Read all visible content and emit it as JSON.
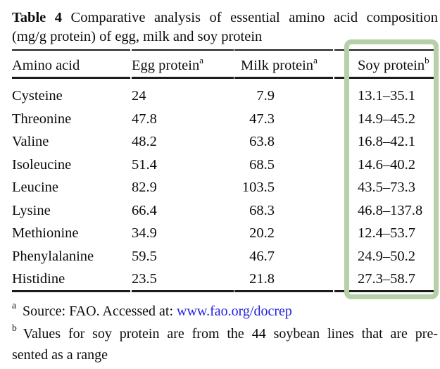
{
  "caption": {
    "tag": "Table 4",
    "line1_rest": "Comparative analysis of essential amino acid composition",
    "line2": "(mg/g protein) of egg, milk and soy protein"
  },
  "table": {
    "columns": [
      {
        "label": "Amino acid",
        "sup": ""
      },
      {
        "label": "Egg protein",
        "sup": "a"
      },
      {
        "label": "Milk protein",
        "sup": "a"
      },
      {
        "label": "Soy protein",
        "sup": "b"
      }
    ],
    "rows": [
      {
        "amino_acid": "Cysteine",
        "egg": "24",
        "milk": "7.9",
        "soy": "13.1–35.1"
      },
      {
        "amino_acid": "Threonine",
        "egg": "47.8",
        "milk": "47.3",
        "soy": "14.9–45.2"
      },
      {
        "amino_acid": "Valine",
        "egg": "48.2",
        "milk": "63.8",
        "soy": "16.8–42.1"
      },
      {
        "amino_acid": "Isoleucine",
        "egg": "51.4",
        "milk": "68.5",
        "soy": "14.6–40.2"
      },
      {
        "amino_acid": "Leucine",
        "egg": "82.9",
        "milk": "103.5",
        "soy": "43.5–73.3"
      },
      {
        "amino_acid": "Lysine",
        "egg": "66.4",
        "milk": "68.3",
        "soy": "46.8–137.8"
      },
      {
        "amino_acid": "Methionine",
        "egg": "34.9",
        "milk": "20.2",
        "soy": "12.4–53.7"
      },
      {
        "amino_acid": "Phenylalanine",
        "egg": "59.5",
        "milk": "46.7",
        "soy": "24.9–50.2"
      },
      {
        "amino_acid": "Histidine",
        "egg": "23.5",
        "milk": "21.8",
        "soy": "27.3–58.7"
      }
    ]
  },
  "footnotes": {
    "a": {
      "marker": "a",
      "text": "Source: FAO. Accessed at: ",
      "link": "www.fao.org/docrep"
    },
    "b": {
      "marker": "b",
      "line1": "Values for soy protein are from the 44 soybean lines that are pre-",
      "line2": "sented as a range"
    }
  },
  "highlight": {
    "name": "soy-protein-column",
    "border_color": "#b6d0aa"
  },
  "colors": {
    "text": "#0d0d0d",
    "link_blue": "#2222dd",
    "rule": "#1c1c1c"
  }
}
